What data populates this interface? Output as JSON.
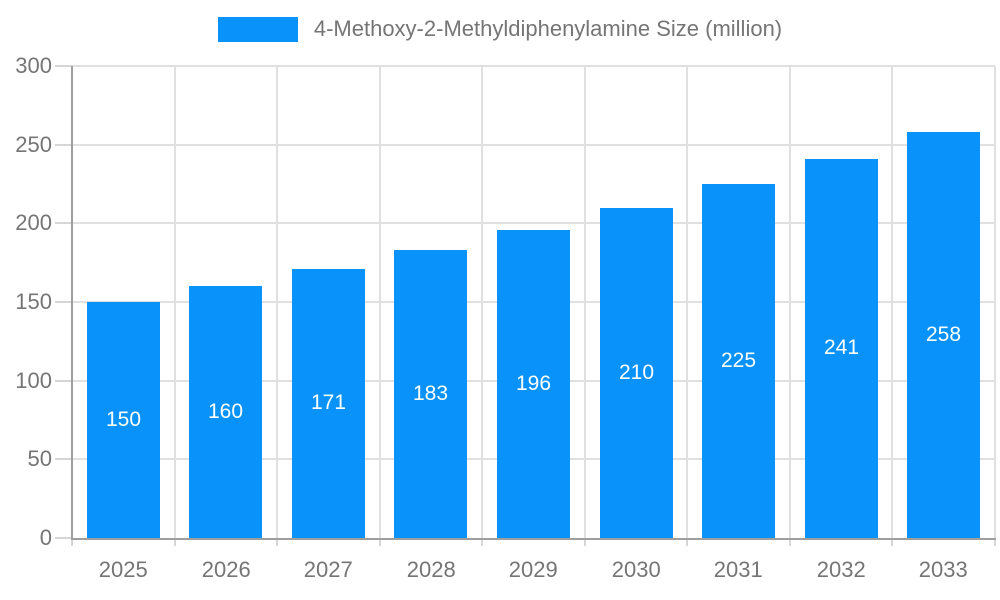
{
  "legend": {
    "label": "4-Methoxy-2-Methyldiphenylamine Size (million)",
    "swatch_color": "#0892fa"
  },
  "chart_data": {
    "type": "bar",
    "title": "4-Methoxy-2-Methyldiphenylamine Size (million)",
    "series_name": "4-Methoxy-2-Methyldiphenylamine Size (million)",
    "categories": [
      "2025",
      "2026",
      "2027",
      "2028",
      "2029",
      "2030",
      "2031",
      "2032",
      "2033"
    ],
    "values": [
      150,
      160,
      171,
      183,
      196,
      210,
      225,
      241,
      258
    ],
    "xlabel": "",
    "ylabel": "",
    "ylim": [
      0,
      300
    ],
    "yticks": [
      0,
      50,
      100,
      150,
      200,
      250,
      300
    ],
    "grid": true,
    "legend_position": "top",
    "value_labels": "inside-center",
    "colors": {
      "bar": "#0892fa",
      "value_label_text": "#ffffff",
      "axis_text": "#757575",
      "gridline": "#e0e0e0",
      "axis_line": "#9e9e9e",
      "background": "#ffffff"
    }
  }
}
